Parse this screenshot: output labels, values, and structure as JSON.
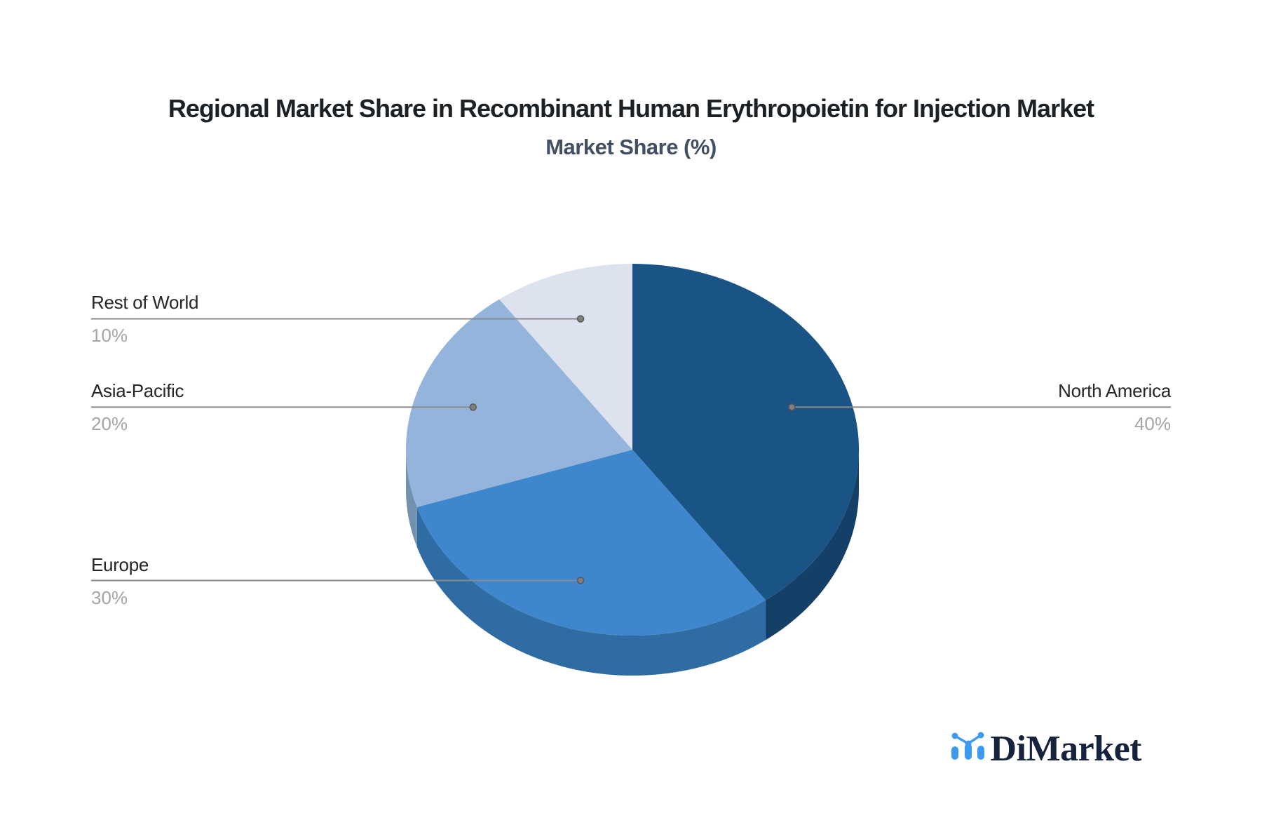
{
  "header": {
    "title": "Regional Market Share in Recombinant Human Erythropoietin for Injection Market",
    "subtitle": "Market Share (%)"
  },
  "chart_data": {
    "type": "pie",
    "title": "Regional Market Share in Recombinant Human Erythropoietin for Injection Market",
    "subtitle": "Market Share (%)",
    "unit": "%",
    "style": "3d-pie",
    "direction": "clockwise",
    "start_angle_deg": 0,
    "legend_position": "callout-labels",
    "segments": [
      {
        "label": "North America",
        "value": 40,
        "display_value": "40%",
        "color": "#1A5486",
        "side_color": "#143F66"
      },
      {
        "label": "Europe",
        "value": 30,
        "display_value": "30%",
        "color": "#3E87CC",
        "side_color": "#2F6CA4"
      },
      {
        "label": "Asia-Pacific",
        "value": 20,
        "display_value": "20%",
        "color": "#94B4DB",
        "side_color": "#7291AF"
      },
      {
        "label": "Rest of World",
        "value": 10,
        "display_value": "10%",
        "color": "#DCE3EE",
        "side_color": "#B9C4D4"
      }
    ]
  },
  "branding": {
    "name": "DiMarket",
    "icon": "bar-line-chart-icon",
    "text_color": "#16233c",
    "icon_color": "#3d9af0"
  },
  "colors": {
    "background": "#ffffff",
    "title_text": "#1c2126",
    "subtitle_text": "#424f62",
    "label_text": "#262626",
    "value_text": "#a5a5a5",
    "leader_line": "#8a8a8a",
    "leader_dot": "#7f7f7f"
  }
}
